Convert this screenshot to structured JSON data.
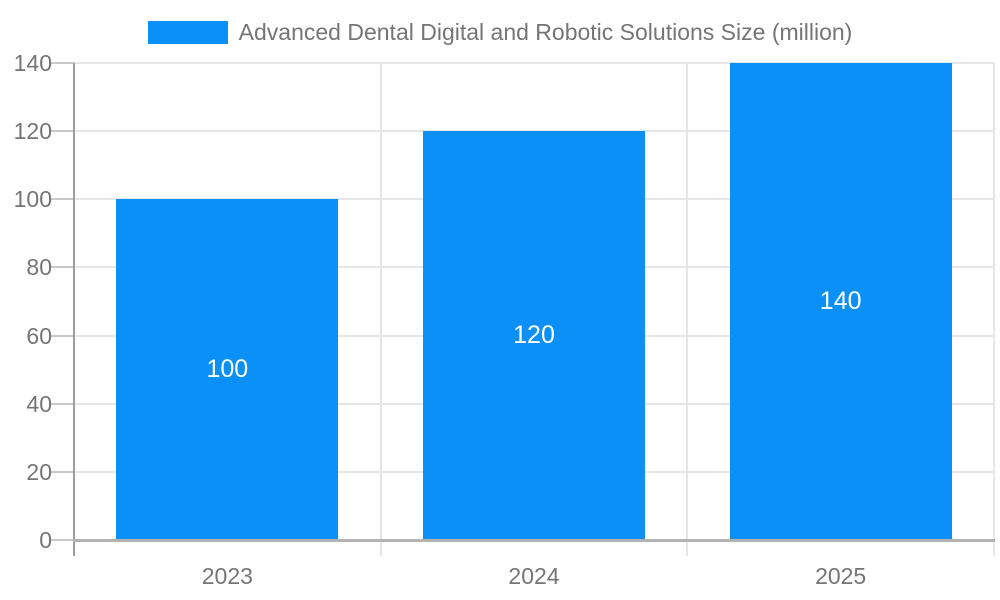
{
  "chart_data": {
    "type": "bar",
    "title": "Advanced Dental Digital and Robotic Solutions Size (million)",
    "categories": [
      "2023",
      "2024",
      "2025"
    ],
    "values": [
      100,
      120,
      140
    ],
    "series": [
      {
        "name": "Advanced Dental Digital and Robotic Solutions Size (million)",
        "values": [
          100,
          120,
          140
        ]
      }
    ],
    "data_labels": [
      "100",
      "120",
      "140"
    ],
    "xlabel": "",
    "ylabel": "",
    "ylim": [
      0,
      140
    ],
    "yticks": [
      0,
      20,
      40,
      60,
      80,
      100,
      120,
      140
    ],
    "grid": true,
    "legend_position": "top",
    "colors": {
      "bar": "#0b90f8",
      "gridline": "#e6e6e6",
      "axis_tick": "#c9c9c9",
      "axis_line_y": "#9e9e9e",
      "axis_line_x": "#b3b3b3",
      "tick_label": "#757575",
      "legend_text": "#757575",
      "bar_label": "#ffffff",
      "background": "#ffffff"
    }
  }
}
